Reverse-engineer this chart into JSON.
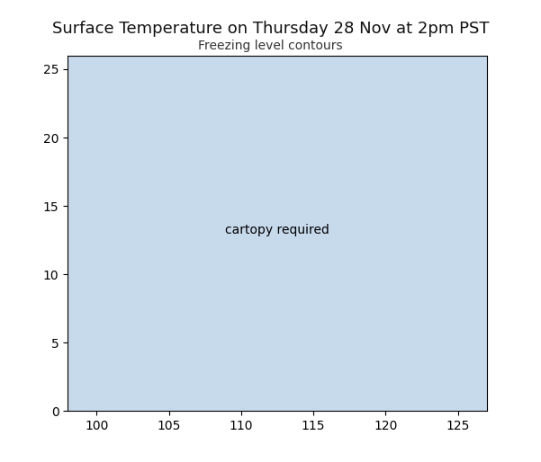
{
  "title": "Surface Temperature on Thursday 28 Nov at 2pm PST",
  "subtitle": "Freezing level contours",
  "title_fontsize": 13,
  "subtitle_fontsize": 10,
  "background_color": "#ffffff",
  "figsize": [
    6.01,
    5.14
  ],
  "dpi": 100,
  "extent": [
    98,
    127,
    0,
    26
  ],
  "contour_color": "#dd0000",
  "contour_lw": 1.5,
  "contour_label_color": "#000000",
  "contour_label_bg": "#ffffff",
  "grid_color": "#9ab0c8",
  "grid_lw": 0.5,
  "border_color": "#000000",
  "border_lw": 0.7,
  "ocean_color": [
    0.78,
    0.855,
    0.925
  ],
  "xticks": [
    100,
    105,
    110,
    115,
    120,
    125
  ],
  "yticks": [
    0,
    5,
    10,
    15,
    20,
    25
  ]
}
